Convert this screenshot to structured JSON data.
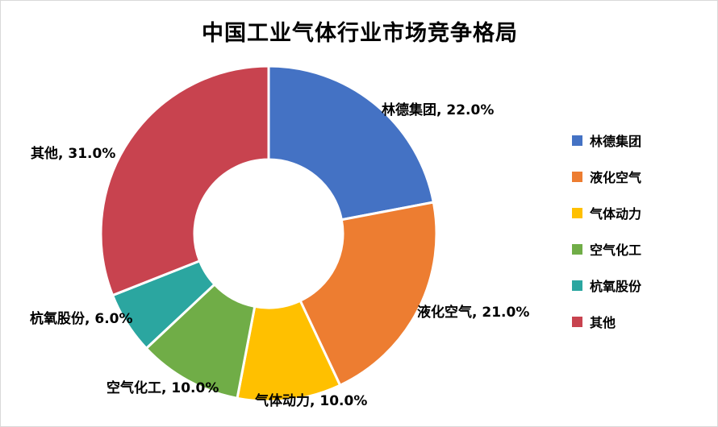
{
  "title": "中国工业气体行业市场竞争格局",
  "chart_data": {
    "type": "pie",
    "subtype": "donut",
    "title": "中国工业气体行业市场竞争格局",
    "categories": [
      "林德集团",
      "液化空气",
      "气体动力",
      "空气化工",
      "杭氧股份",
      "其他"
    ],
    "values": [
      22.0,
      21.0,
      10.0,
      10.0,
      6.0,
      31.0
    ],
    "unit": "%",
    "colors": [
      "#4472C4",
      "#ED7D31",
      "#FFC000",
      "#70AD47",
      "#2BA6A0",
      "#C8434F"
    ],
    "start_angle_deg": 0,
    "direction": "clockwise",
    "inner_radius_ratio": 0.44,
    "data_labels": [
      "林德集团, 22.0%",
      "液化空气, 21.0%",
      "气体动力, 10.0%",
      "空气化工, 10.0%",
      "杭氧股份, 6.0%",
      "其他, 31.0%"
    ],
    "legend": {
      "position": "right",
      "items": [
        {
          "label": "林德集团",
          "color": "#4472C4"
        },
        {
          "label": "液化空气",
          "color": "#ED7D31"
        },
        {
          "label": "气体动力",
          "color": "#FFC000"
        },
        {
          "label": "空气化工",
          "color": "#70AD47"
        },
        {
          "label": "杭氧股份",
          "color": "#2BA6A0"
        },
        {
          "label": "其他",
          "color": "#C8434F"
        }
      ]
    }
  }
}
